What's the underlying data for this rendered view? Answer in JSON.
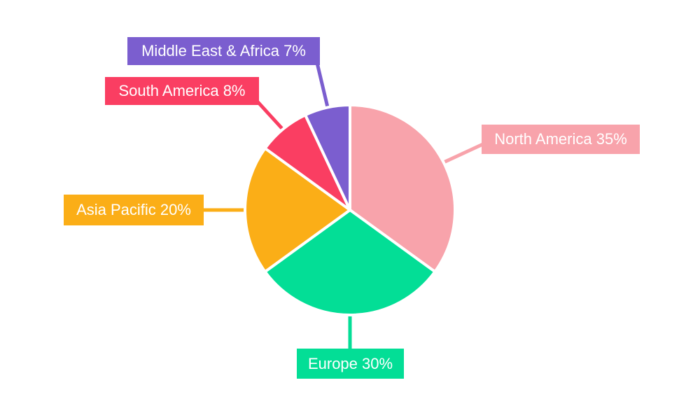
{
  "chart_data": {
    "type": "pie",
    "title": "",
    "background": "#FFFFFF",
    "label_text_color": "#FFFFFF",
    "label_style": "callout-boxes-with-leader-lines",
    "start_angle_deg": 0,
    "direction": "clockwise",
    "legend_position": "none",
    "slices": [
      {
        "name": "North America",
        "value_pct": 35,
        "display": "North America 35%",
        "color": "#F8A3AB"
      },
      {
        "name": "Europe",
        "value_pct": 30,
        "display": "Europe 30%",
        "color": "#03DE96"
      },
      {
        "name": "Asia Pacific",
        "value_pct": 20,
        "display": "Asia Pacific 20%",
        "color": "#FBAE17"
      },
      {
        "name": "South America",
        "value_pct": 8,
        "display": "South America 8%",
        "color": "#FA3E62"
      },
      {
        "name": "Middle East & Africa",
        "value_pct": 7,
        "display": "Middle East & Africa 7%",
        "color": "#7B5ECF"
      }
    ]
  }
}
